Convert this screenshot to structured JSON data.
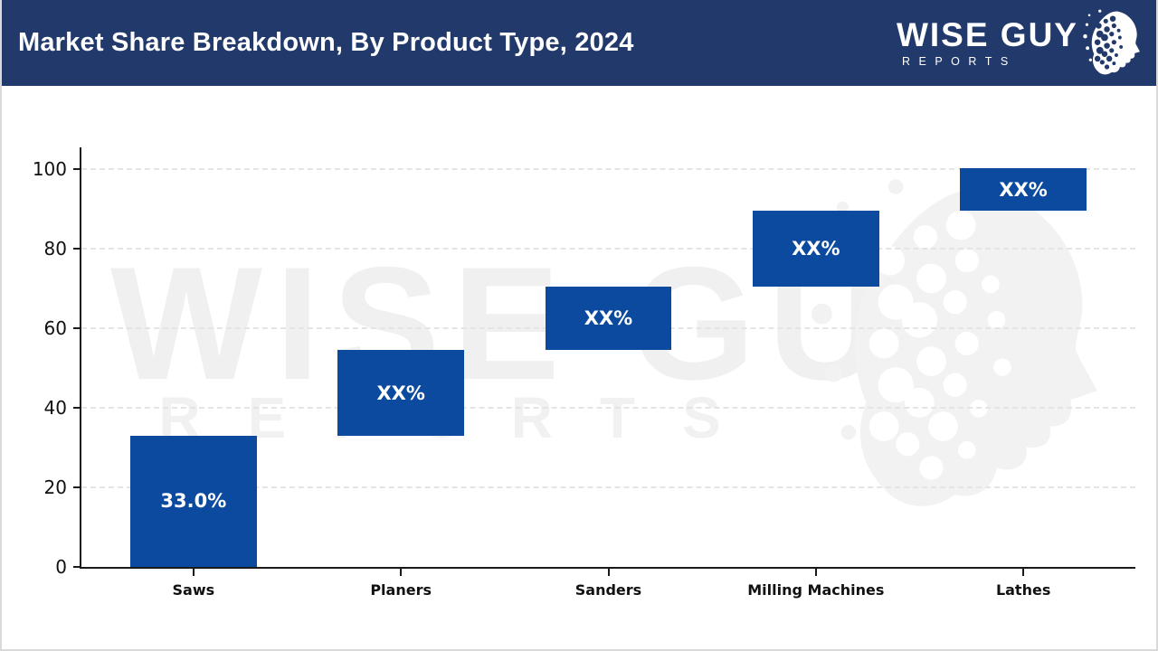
{
  "header": {
    "title": "Market Share Breakdown, By Product Type, 2024",
    "logo": {
      "line1": "WISE GUY",
      "line2": "REPORTS"
    }
  },
  "watermark": {
    "line1": "WISE GUY",
    "line2": "REPORTS"
  },
  "colors": {
    "header_bg": "#22396b",
    "bar": "#0b4a9e",
    "bar_label_text": "#ffffff",
    "axis": "#1a1a1a",
    "gridline": "#e4e4e4",
    "watermark": "#f0f0f0"
  },
  "chart_data": {
    "type": "bar",
    "subtype": "waterfall",
    "title": "Market Share Breakdown, By Product Type, 2024",
    "categories": [
      "Saws",
      "Planers",
      "Sanders",
      "Milling Machines",
      "Lathes"
    ],
    "segments": [
      {
        "category": "Saws",
        "start": 0,
        "end": 33,
        "label": "33.0%"
      },
      {
        "category": "Planers",
        "start": 33,
        "end": 54.5,
        "label": "XX%"
      },
      {
        "category": "Sanders",
        "start": 54.5,
        "end": 70.5,
        "label": "XX%"
      },
      {
        "category": "Milling Machines",
        "start": 70.5,
        "end": 89.5,
        "label": "XX%"
      },
      {
        "category": "Lathes",
        "start": 89.5,
        "end": 100.3,
        "label": "XX%"
      }
    ],
    "y_ticks": [
      0,
      20,
      40,
      60,
      80,
      100
    ],
    "ylim": [
      0,
      105.5
    ],
    "xlabel": "",
    "ylabel": "",
    "grid": "horizontal-dashed",
    "legend": "none"
  }
}
